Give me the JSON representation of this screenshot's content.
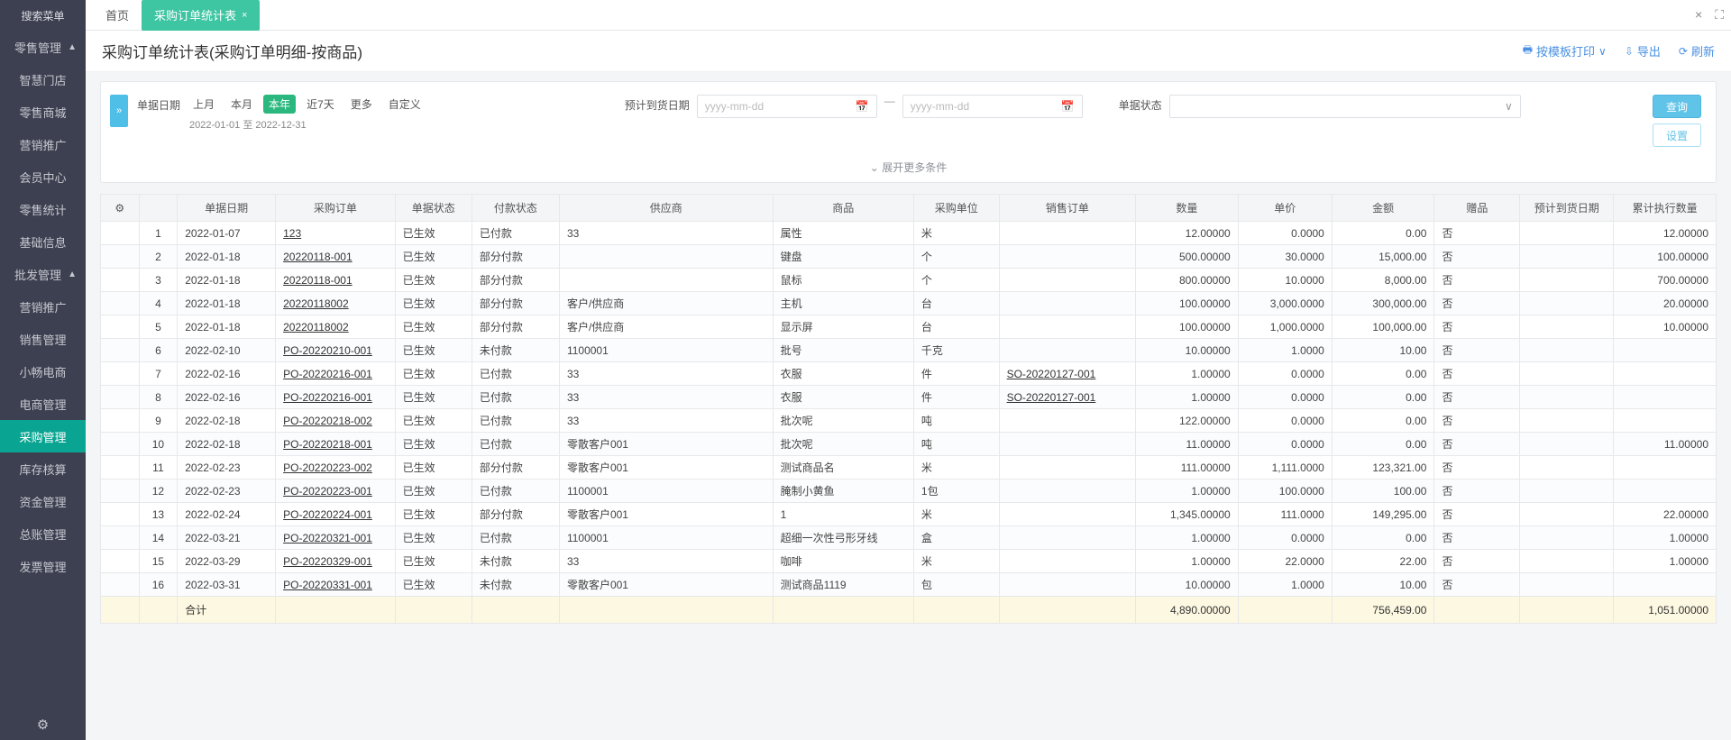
{
  "sidebar": {
    "search": "搜索菜单",
    "groups": [
      {
        "label": "零售管理",
        "expand": "▲",
        "items": [
          "智慧门店",
          "零售商城",
          "营销推广",
          "会员中心",
          "零售统计",
          "基础信息"
        ]
      },
      {
        "label": "批发管理",
        "expand": "▲",
        "items": [
          "营销推广",
          "销售管理"
        ]
      }
    ],
    "flat": [
      "小畅电商",
      "电商管理",
      "采购管理",
      "库存核算",
      "资金管理",
      "总账管理",
      "发票管理"
    ],
    "activeIndex": 2,
    "gear": "⚙"
  },
  "tabs": {
    "home": "首页",
    "active": "采购订单统计表",
    "close": "×",
    "right_close": "×",
    "right_expand": "⛶"
  },
  "header": {
    "title": "采购订单统计表(采购订单明细-按商品)",
    "actions": {
      "print": "按模板打印",
      "export": "导出",
      "refresh": "刷新",
      "chev": "∨",
      "p_ico": "🖶",
      "e_ico": "⇩",
      "r_ico": "⟳"
    }
  },
  "filter": {
    "collapse": "»",
    "date_label": "单据日期",
    "tabs": [
      "上月",
      "本月",
      "本年",
      "近7天",
      "更多",
      "自定义"
    ],
    "tab_sel": 2,
    "range": "2022-01-01 至 2022-12-31",
    "eta_label": "预计到货日期",
    "ph": "yyyy-mm-dd",
    "cal": "📅",
    "dash": "—",
    "status_label": "单据状态",
    "chev": "∨",
    "query": "查询",
    "settings": "设置",
    "expand": "展开更多条件",
    "exp_ico": "⌄"
  },
  "table": {
    "gear": "⚙",
    "cols": [
      "单据日期",
      "采购订单",
      "单据状态",
      "付款状态",
      "供应商",
      "商品",
      "采购单位",
      "销售订单",
      "数量",
      "单价",
      "金额",
      "赠品",
      "预计到货日期",
      "累计执行数量"
    ],
    "rows": [
      {
        "i": 1,
        "date": "2022-01-07",
        "po": "123",
        "st": "已生效",
        "pay": "已付款",
        "sup": "33",
        "prod": "属性",
        "unit": "米",
        "so": "",
        "qty": "12.00000",
        "price": "0.0000",
        "amt": "0.00",
        "gift": "否",
        "eta": "",
        "exec": "12.00000"
      },
      {
        "i": 2,
        "date": "2022-01-18",
        "po": "20220118-001",
        "st": "已生效",
        "pay": "部分付款",
        "sup": "",
        "prod": "键盘",
        "unit": "个",
        "so": "",
        "qty": "500.00000",
        "price": "30.0000",
        "amt": "15,000.00",
        "gift": "否",
        "eta": "",
        "exec": "100.00000"
      },
      {
        "i": 3,
        "date": "2022-01-18",
        "po": "20220118-001",
        "st": "已生效",
        "pay": "部分付款",
        "sup": "",
        "prod": "鼠标",
        "unit": "个",
        "so": "",
        "qty": "800.00000",
        "price": "10.0000",
        "amt": "8,000.00",
        "gift": "否",
        "eta": "",
        "exec": "700.00000"
      },
      {
        "i": 4,
        "date": "2022-01-18",
        "po": "20220118002",
        "st": "已生效",
        "pay": "部分付款",
        "sup": "客户/供应商",
        "prod": "主机",
        "unit": "台",
        "so": "",
        "qty": "100.00000",
        "price": "3,000.0000",
        "amt": "300,000.00",
        "gift": "否",
        "eta": "",
        "exec": "20.00000"
      },
      {
        "i": 5,
        "date": "2022-01-18",
        "po": "20220118002",
        "st": "已生效",
        "pay": "部分付款",
        "sup": "客户/供应商",
        "prod": "显示屏",
        "unit": "台",
        "so": "",
        "qty": "100.00000",
        "price": "1,000.0000",
        "amt": "100,000.00",
        "gift": "否",
        "eta": "",
        "exec": "10.00000"
      },
      {
        "i": 6,
        "date": "2022-02-10",
        "po": "PO-20220210-001",
        "st": "已生效",
        "pay": "未付款",
        "sup": "1100001",
        "prod": "批号",
        "unit": "千克",
        "so": "",
        "qty": "10.00000",
        "price": "1.0000",
        "amt": "10.00",
        "gift": "否",
        "eta": "",
        "exec": ""
      },
      {
        "i": 7,
        "date": "2022-02-16",
        "po": "PO-20220216-001",
        "st": "已生效",
        "pay": "已付款",
        "sup": "33",
        "prod": "衣服",
        "unit": "件",
        "so": "SO-20220127-001",
        "qty": "1.00000",
        "price": "0.0000",
        "amt": "0.00",
        "gift": "否",
        "eta": "",
        "exec": ""
      },
      {
        "i": 8,
        "date": "2022-02-16",
        "po": "PO-20220216-001",
        "st": "已生效",
        "pay": "已付款",
        "sup": "33",
        "prod": "衣服",
        "unit": "件",
        "so": "SO-20220127-001",
        "qty": "1.00000",
        "price": "0.0000",
        "amt": "0.00",
        "gift": "否",
        "eta": "",
        "exec": ""
      },
      {
        "i": 9,
        "date": "2022-02-18",
        "po": "PO-20220218-002",
        "st": "已生效",
        "pay": "已付款",
        "sup": "33",
        "prod": "批次呢",
        "unit": "吨",
        "so": "",
        "qty": "122.00000",
        "price": "0.0000",
        "amt": "0.00",
        "gift": "否",
        "eta": "",
        "exec": ""
      },
      {
        "i": 10,
        "date": "2022-02-18",
        "po": "PO-20220218-001",
        "st": "已生效",
        "pay": "已付款",
        "sup": "零散客户001",
        "prod": "批次呢",
        "unit": "吨",
        "so": "",
        "qty": "11.00000",
        "price": "0.0000",
        "amt": "0.00",
        "gift": "否",
        "eta": "",
        "exec": "11.00000"
      },
      {
        "i": 11,
        "date": "2022-02-23",
        "po": "PO-20220223-002",
        "st": "已生效",
        "pay": "部分付款",
        "sup": "零散客户001",
        "prod": "测试商品名",
        "unit": "米",
        "so": "",
        "qty": "111.00000",
        "price": "1,111.0000",
        "amt": "123,321.00",
        "gift": "否",
        "eta": "",
        "exec": ""
      },
      {
        "i": 12,
        "date": "2022-02-23",
        "po": "PO-20220223-001",
        "st": "已生效",
        "pay": "已付款",
        "sup": "1100001",
        "prod": "腌制小黄鱼",
        "unit": "1包",
        "so": "",
        "qty": "1.00000",
        "price": "100.0000",
        "amt": "100.00",
        "gift": "否",
        "eta": "",
        "exec": ""
      },
      {
        "i": 13,
        "date": "2022-02-24",
        "po": "PO-20220224-001",
        "st": "已生效",
        "pay": "部分付款",
        "sup": "零散客户001",
        "prod": "1",
        "unit": "米",
        "so": "",
        "qty": "1,345.00000",
        "price": "111.0000",
        "amt": "149,295.00",
        "gift": "否",
        "eta": "",
        "exec": "22.00000"
      },
      {
        "i": 14,
        "date": "2022-03-21",
        "po": "PO-20220321-001",
        "st": "已生效",
        "pay": "已付款",
        "sup": "1100001",
        "prod": "超细一次性弓形牙线",
        "unit": "盒",
        "so": "",
        "qty": "1.00000",
        "price": "0.0000",
        "amt": "0.00",
        "gift": "否",
        "eta": "",
        "exec": "1.00000"
      },
      {
        "i": 15,
        "date": "2022-03-29",
        "po": "PO-20220329-001",
        "st": "已生效",
        "pay": "未付款",
        "sup": "33",
        "prod": "咖啡",
        "unit": "米",
        "so": "",
        "qty": "1.00000",
        "price": "22.0000",
        "amt": "22.00",
        "gift": "否",
        "eta": "",
        "exec": "1.00000"
      },
      {
        "i": 16,
        "date": "2022-03-31",
        "po": "PO-20220331-001",
        "st": "已生效",
        "pay": "未付款",
        "sup": "零散客户001",
        "prod": "测试商品1119",
        "unit": "包",
        "so": "",
        "qty": "10.00000",
        "price": "1.0000",
        "amt": "10.00",
        "gift": "否",
        "eta": "",
        "exec": ""
      }
    ],
    "total": {
      "label": "合计",
      "qty": "4,890.00000",
      "amt": "756,459.00",
      "exec": "1,051.00000"
    }
  }
}
